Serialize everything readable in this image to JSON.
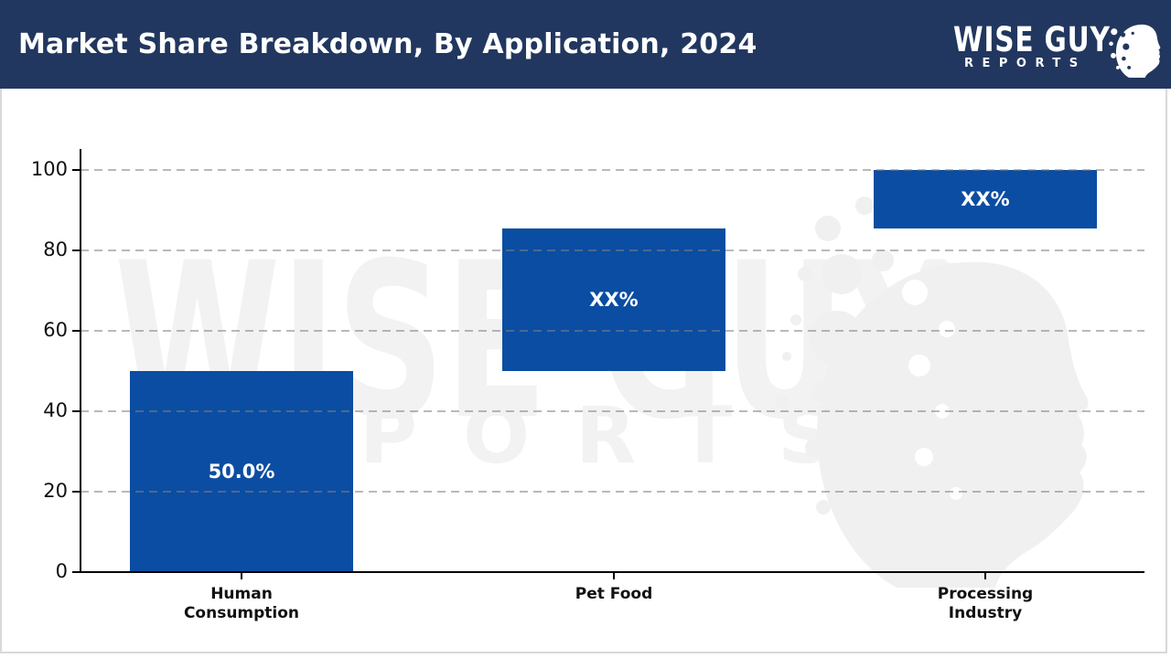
{
  "header": {
    "title": "Market Share Breakdown, By Application, 2024",
    "logo": {
      "wordmark": "WISE GUY",
      "subtitle": "REPORTS"
    }
  },
  "watermark": {
    "wordmark": "WISE GUY",
    "subtitle": "REPORTS"
  },
  "colors": {
    "header_bg": "#21375f",
    "bar": "#0b4da2",
    "bar_label": "#ffffff",
    "grid": "#cccccc",
    "axis": "#000000",
    "frame_border": "#d9d9d9"
  },
  "chart_data": {
    "type": "bar",
    "subtype": "waterfall",
    "title": "Market Share Breakdown, By Application, 2024",
    "categories": [
      "Human Consumption",
      "Pet Food",
      "Processing Industry"
    ],
    "segments": [
      {
        "category": "Human Consumption",
        "start": 0,
        "end": 50,
        "value_label": "50.0%"
      },
      {
        "category": "Pet Food",
        "start": 50,
        "end": 85.5,
        "value_label": "XX%"
      },
      {
        "category": "Processing Industry",
        "start": 85.5,
        "end": 100,
        "value_label": "XX%"
      }
    ],
    "xlabel": "",
    "ylabel": "",
    "ylim": [
      0,
      100
    ],
    "yticks": [
      0,
      20,
      40,
      60,
      80,
      100
    ],
    "grid": "horizontal dashed",
    "legend": "none"
  }
}
